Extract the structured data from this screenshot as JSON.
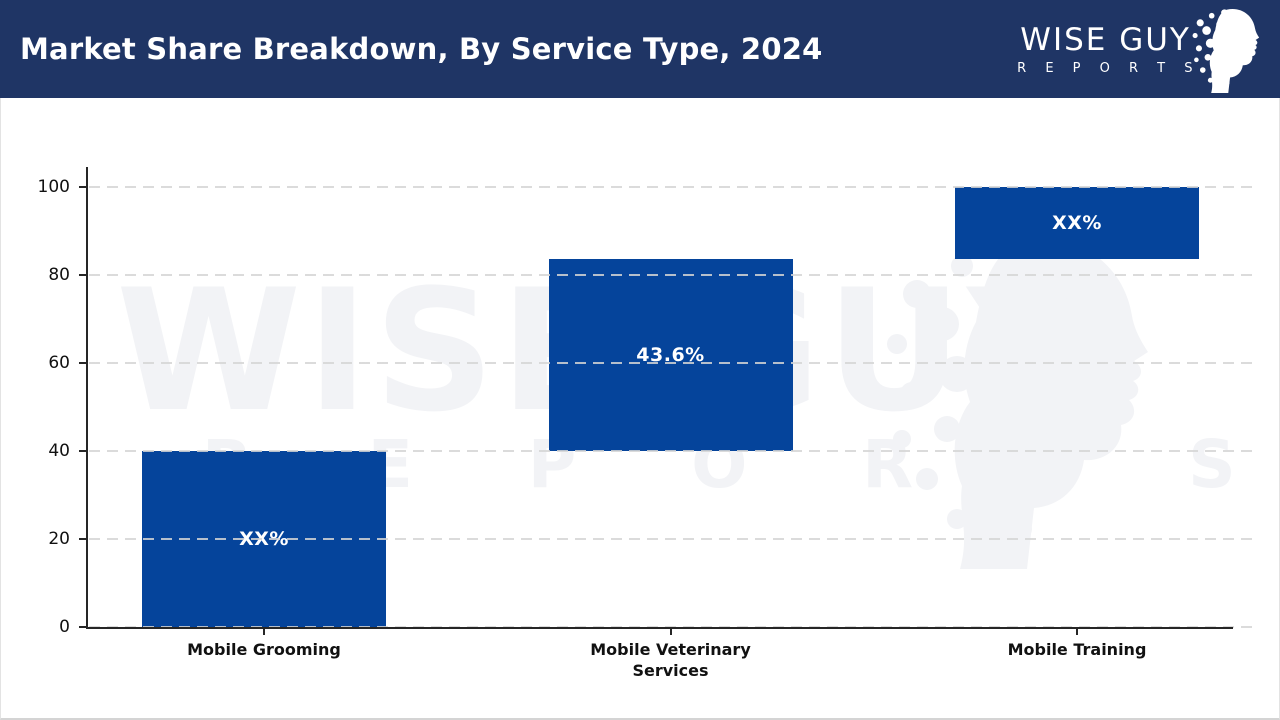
{
  "header": {
    "title": "Market Share Breakdown, By Service Type, 2024",
    "logo": {
      "line1": "WISE GUY",
      "line2": "R E P O R T S"
    }
  },
  "watermark": {
    "line1": "WISE GUY",
    "line2": "R E P O R T S"
  },
  "colors": {
    "header_bg": "#1f3565",
    "bar_blue": "#05449b",
    "watermark_gray": "#f2f3f6",
    "gridline_gray": "#d5d5d5",
    "axis_dark": "#262626",
    "text_dark": "#111111",
    "white": "#ffffff"
  },
  "chart_data": {
    "type": "bar",
    "variant": "waterfall",
    "title": "Market Share Breakdown, By Service Type, 2024",
    "categories": [
      "Mobile Grooming",
      "Mobile Veterinary Services",
      "Mobile Training"
    ],
    "segments": [
      {
        "category": "Mobile Grooming",
        "start": 0,
        "end": 40,
        "label": "XX%"
      },
      {
        "category": "Mobile Veterinary Services",
        "start": 40,
        "end": 83.6,
        "label": "43.6%"
      },
      {
        "category": "Mobile Training",
        "start": 83.6,
        "end": 100,
        "label": "XX%"
      }
    ],
    "y_ticks": [
      0,
      20,
      40,
      60,
      80,
      100
    ],
    "ylim": [
      0,
      105
    ],
    "xlabel": "",
    "ylabel": "",
    "bar_color": "#05449b",
    "grid": "horizontal-dashed",
    "legend": "none"
  }
}
